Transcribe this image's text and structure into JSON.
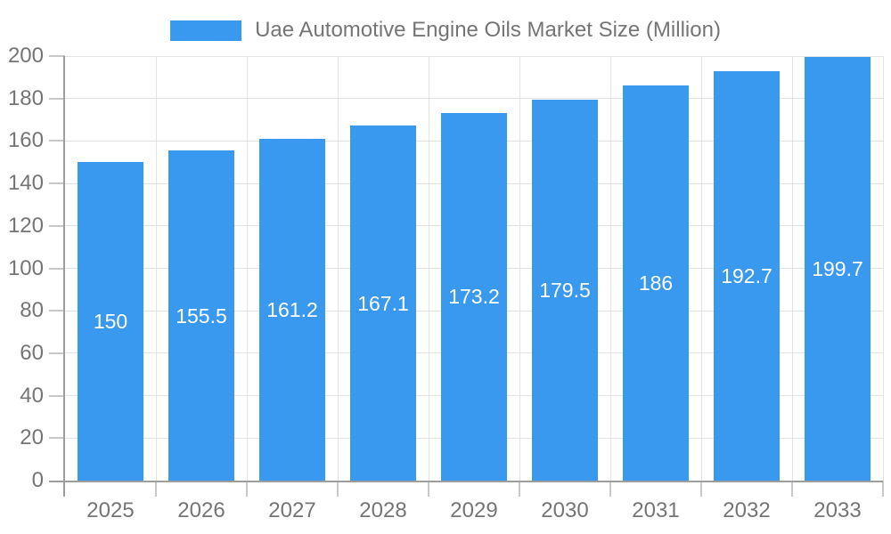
{
  "legend": {
    "label": "Uae Automotive Engine Oils Market Size (Million)"
  },
  "chart_data": {
    "type": "bar",
    "title": "Uae Automotive Engine Oils Market Size (Million)",
    "categories": [
      "2025",
      "2026",
      "2027",
      "2028",
      "2029",
      "2030",
      "2031",
      "2032",
      "2033"
    ],
    "values": [
      150,
      155.5,
      161.2,
      167.1,
      173.2,
      179.5,
      186,
      192.7,
      199.7
    ],
    "value_labels": [
      "150",
      "155.5",
      "161.2",
      "167.1",
      "173.2",
      "179.5",
      "186",
      "192.7",
      "199.7"
    ],
    "xlabel": "",
    "ylabel": "",
    "ylim": [
      0,
      200
    ],
    "yticks": [
      0,
      20,
      40,
      60,
      80,
      100,
      120,
      140,
      160,
      180,
      200
    ],
    "grid": true,
    "legend_position": "top",
    "bar_value_labels_inside": true
  },
  "colors": {
    "bar": "#3999EE",
    "bar_label": "#FFFFFF",
    "axis_text": "#757575",
    "axis_line": "#9E9E9E",
    "tick": "#C8C8C8",
    "gridline": "#E3E3E3",
    "background": "#FFFFFF"
  }
}
